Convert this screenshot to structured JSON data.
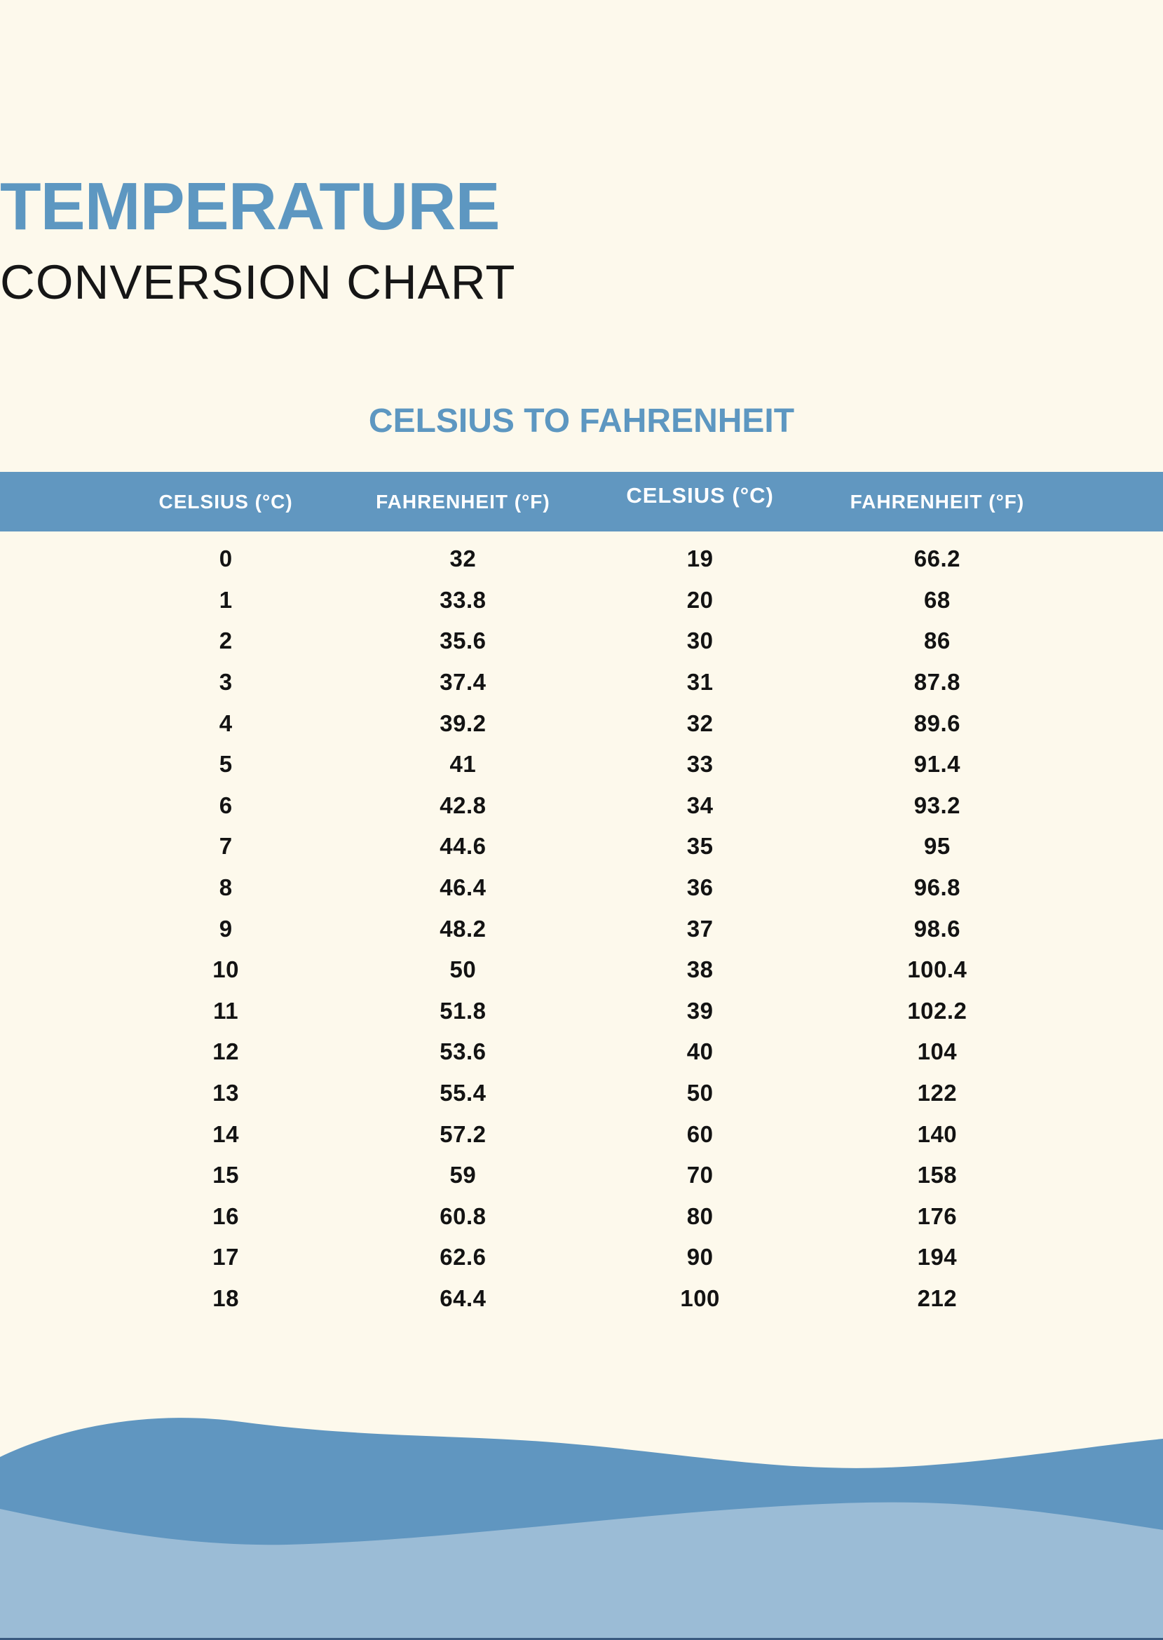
{
  "header": {
    "title": "TEMPERATURE",
    "subtitle": "CONVERSION CHART",
    "section_title": "CELSIUS TO FAHRENHEIT"
  },
  "colors": {
    "background": "#fdf9ec",
    "accent_blue": "#5d97c1",
    "band_blue": "#6197c0",
    "wave_dark": "#6096c0",
    "wave_light": "#9bbcd6",
    "edge_dark": "#3a5a80",
    "header_text": "#ffffff",
    "cell_text": "#131313"
  },
  "table": {
    "columns": [
      "CELSIUS (°C)",
      "FAHRENHEIT (°F)",
      "CELSIUS (°C)",
      "FAHRENHEIT (°F)"
    ],
    "rows": [
      [
        "0",
        "32",
        "19",
        "66.2"
      ],
      [
        "1",
        "33.8",
        "20",
        "68"
      ],
      [
        "2",
        "35.6",
        "30",
        "86"
      ],
      [
        "3",
        "37.4",
        "31",
        "87.8"
      ],
      [
        "4",
        "39.2",
        "32",
        "89.6"
      ],
      [
        "5",
        "41",
        "33",
        "91.4"
      ],
      [
        "6",
        "42.8",
        "34",
        "93.2"
      ],
      [
        "7",
        "44.6",
        "35",
        "95"
      ],
      [
        "8",
        "46.4",
        "36",
        "96.8"
      ],
      [
        "9",
        "48.2",
        "37",
        "98.6"
      ],
      [
        "10",
        "50",
        "38",
        "100.4"
      ],
      [
        "11",
        "51.8",
        "39",
        "102.2"
      ],
      [
        "12",
        "53.6",
        "40",
        "104"
      ],
      [
        "13",
        "55.4",
        "50",
        "122"
      ],
      [
        "14",
        "57.2",
        "60",
        "140"
      ],
      [
        "15",
        "59",
        "70",
        "158"
      ],
      [
        "16",
        "60.8",
        "80",
        "176"
      ],
      [
        "17",
        "62.6",
        "90",
        "194"
      ],
      [
        "18",
        "64.4",
        "100",
        "212"
      ]
    ]
  }
}
